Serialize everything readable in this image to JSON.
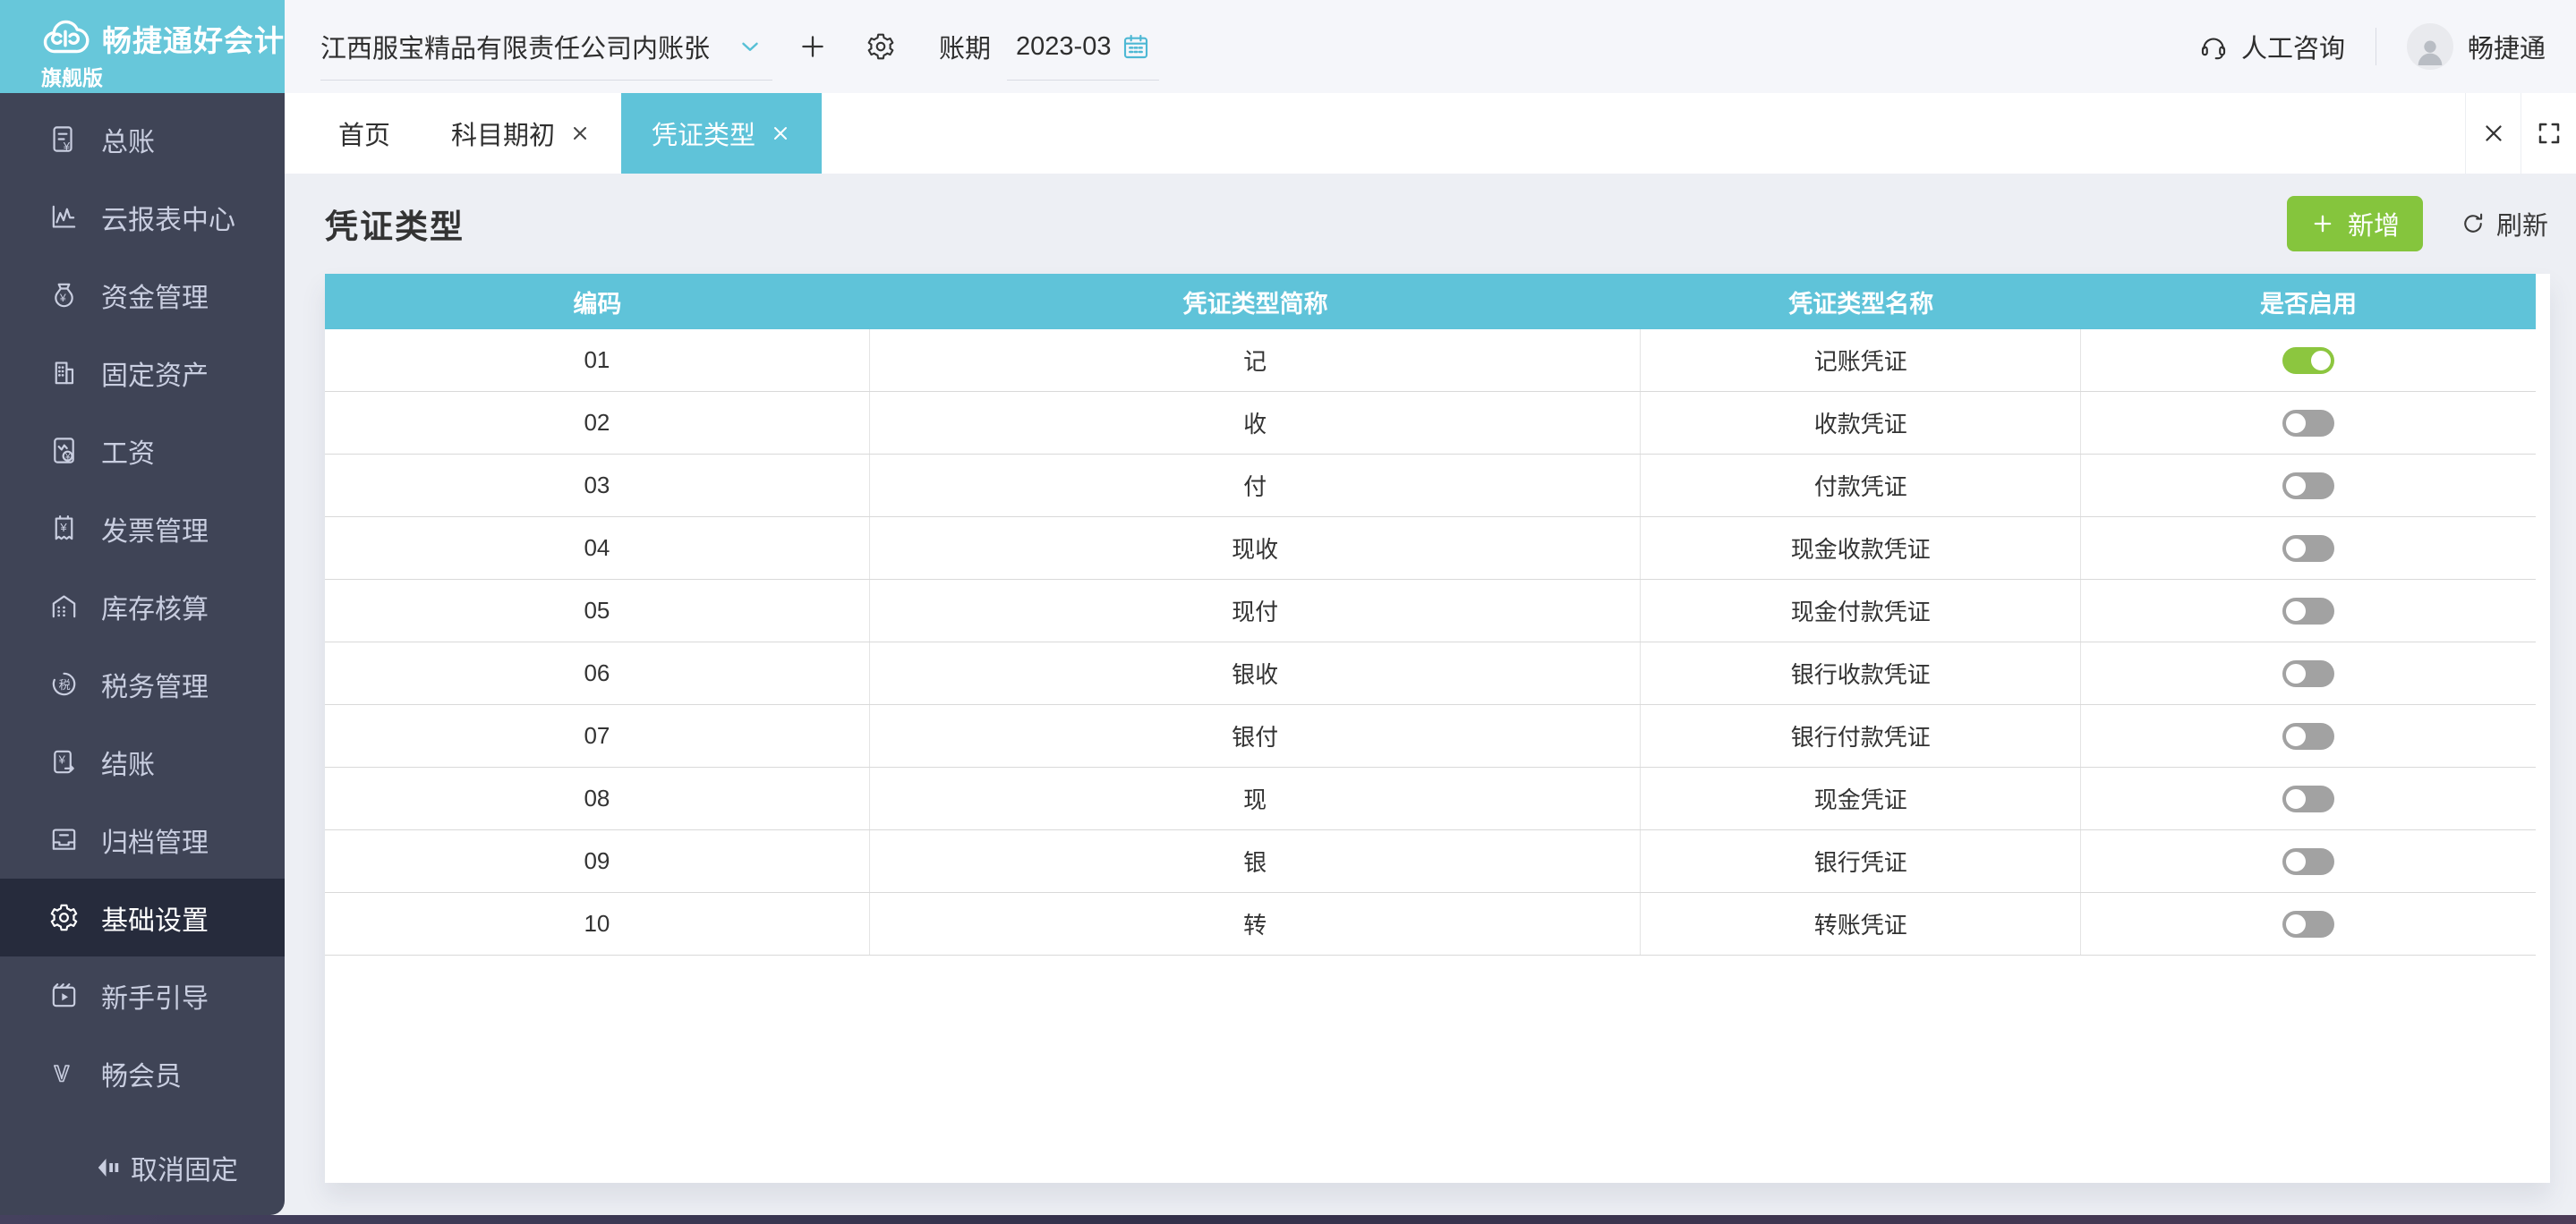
{
  "app": {
    "logo_title": "畅捷通好会计",
    "logo_subtitle": "旗舰版",
    "logo_icon": "cloud-logo-icon"
  },
  "topbar": {
    "company": "江西服宝精品有限责任公司内账张",
    "company_dropdown_icon": "chevron-down-icon",
    "add_account_icon": "plus-icon",
    "settings_icon": "gear-icon",
    "period_label": "账期",
    "period_value": "2023-03",
    "period_icon": "calendar-icon",
    "help_label": "人工咨询",
    "help_icon": "headset-icon",
    "avatar_icon": "person-icon",
    "username": "畅捷通"
  },
  "tabs": [
    {
      "key": "home",
      "label": "首页",
      "closable": false,
      "active": false
    },
    {
      "key": "account-initial",
      "label": "科目期初",
      "closable": true,
      "active": false
    },
    {
      "key": "voucher-type",
      "label": "凭证类型",
      "closable": true,
      "active": true
    }
  ],
  "window_controls": {
    "close_icon": "close-icon",
    "fullscreen_icon": "fullscreen-icon"
  },
  "page": {
    "title": "凭证类型",
    "add_label": "新增",
    "add_icon": "plus-icon",
    "refresh_label": "刷新",
    "refresh_icon": "refresh-icon"
  },
  "table": {
    "headers": [
      "编码",
      "凭证类型简称",
      "凭证类型名称",
      "是否启用"
    ],
    "rows": [
      {
        "code": "01",
        "short_name": "记",
        "name": "记账凭证",
        "enabled": true
      },
      {
        "code": "02",
        "short_name": "收",
        "name": "收款凭证",
        "enabled": false
      },
      {
        "code": "03",
        "short_name": "付",
        "name": "付款凭证",
        "enabled": false
      },
      {
        "code": "04",
        "short_name": "现收",
        "name": "现金收款凭证",
        "enabled": false
      },
      {
        "code": "05",
        "short_name": "现付",
        "name": "现金付款凭证",
        "enabled": false
      },
      {
        "code": "06",
        "short_name": "银收",
        "name": "银行收款凭证",
        "enabled": false
      },
      {
        "code": "07",
        "short_name": "银付",
        "name": "银行付款凭证",
        "enabled": false
      },
      {
        "code": "08",
        "short_name": "现",
        "name": "现金凭证",
        "enabled": false
      },
      {
        "code": "09",
        "short_name": "银",
        "name": "银行凭证",
        "enabled": false
      },
      {
        "code": "10",
        "short_name": "转",
        "name": "转账凭证",
        "enabled": false
      }
    ]
  },
  "sidebar": {
    "items": [
      {
        "key": "general-ledger",
        "label": "总账",
        "icon": "ledger-icon",
        "active": false
      },
      {
        "key": "cloud-reports",
        "label": "云报表中心",
        "icon": "chart-icon",
        "active": false
      },
      {
        "key": "funds",
        "label": "资金管理",
        "icon": "moneybag-icon",
        "active": false
      },
      {
        "key": "fixed-assets",
        "label": "固定资产",
        "icon": "building-icon",
        "active": false
      },
      {
        "key": "payroll",
        "label": "工资",
        "icon": "salary-icon",
        "active": false
      },
      {
        "key": "invoices",
        "label": "发票管理",
        "icon": "invoice-icon",
        "active": false
      },
      {
        "key": "inventory",
        "label": "库存核算",
        "icon": "warehouse-icon",
        "active": false
      },
      {
        "key": "tax",
        "label": "税务管理",
        "icon": "tax-icon",
        "active": false
      },
      {
        "key": "closing",
        "label": "结账",
        "icon": "closing-icon",
        "active": false
      },
      {
        "key": "archive",
        "label": "归档管理",
        "icon": "archive-icon",
        "active": false
      },
      {
        "key": "settings",
        "label": "基础设置",
        "icon": "gear-icon",
        "active": true
      },
      {
        "key": "guide",
        "label": "新手引导",
        "icon": "guide-icon",
        "active": false
      },
      {
        "key": "member",
        "label": "畅会员",
        "icon": "vip-icon",
        "active": false
      }
    ],
    "unpin_label": "取消固定",
    "unpin_icon": "unpin-icon"
  },
  "colors": {
    "accent_teal": "#5fc3d9",
    "logo_teal": "#67c7da",
    "button_green": "#85c53d",
    "toggle_on_green": "#8cc63f",
    "toggle_off_gray": "#a2a2a2",
    "sidebar_bg": "#3f4456",
    "sidebar_active_bg": "#262b3c",
    "content_bg": "#edeff4",
    "header_text": "#ffffff"
  }
}
